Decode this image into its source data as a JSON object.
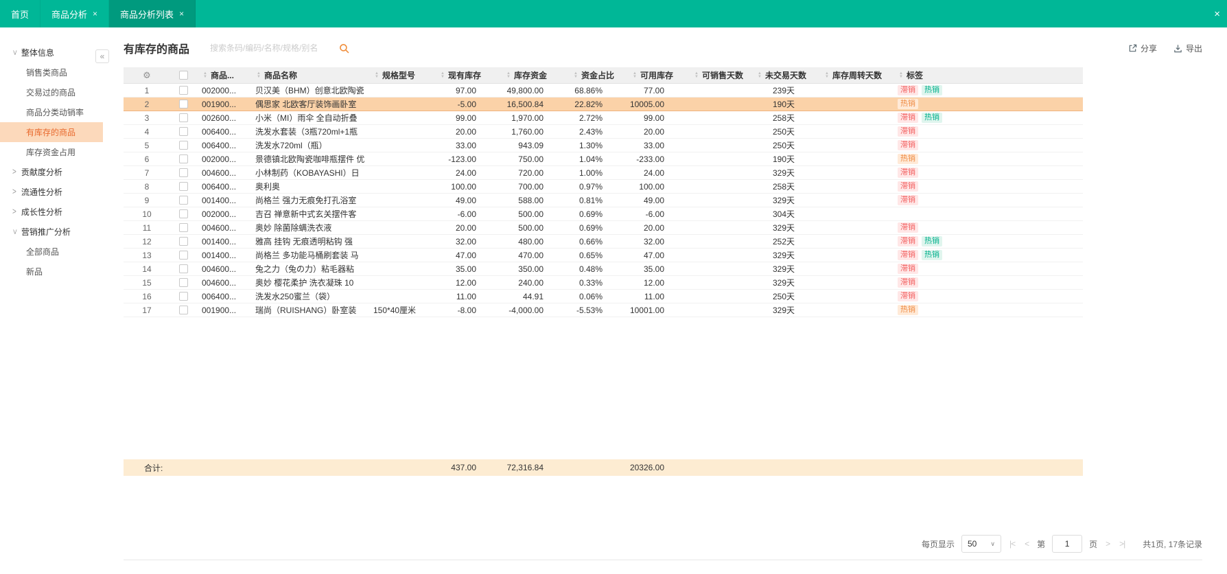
{
  "colors": {
    "accent": "#00b797",
    "tab_active": "#009a7e",
    "selection_bg": "#fbd2a8",
    "active_nav_bg": "#fcd9bb",
    "active_nav_text": "#e8692d",
    "summary_bg": "#fdecd2",
    "tag_red_bg": "#ffe7e7",
    "tag_red_text": "#f25e5e",
    "tag_teal_bg": "#e0f5ee",
    "tag_teal_text": "#00b08b",
    "tag_orange_bg": "#ffead8",
    "tag_orange_text": "#ef8c44",
    "search_icon": "#f08e3c"
  },
  "topbar": {
    "tabs": [
      {
        "label": "首页",
        "closable": false,
        "active": false
      },
      {
        "label": "商品分析",
        "closable": true,
        "active": false
      },
      {
        "label": "商品分析列表",
        "closable": true,
        "active": true
      }
    ],
    "tab_close_label": "×",
    "close_label": "×"
  },
  "sidebar": {
    "collapse_label": "«",
    "groups": [
      {
        "label": "整体信息",
        "expanded": true,
        "items": [
          {
            "label": "销售类商品",
            "active": false
          },
          {
            "label": "交易过的商品",
            "active": false
          },
          {
            "label": "商品分类动销率",
            "active": false
          },
          {
            "label": "有库存的商品",
            "active": true
          },
          {
            "label": "库存资金占用",
            "active": false
          }
        ]
      },
      {
        "label": "贡献度分析",
        "expanded": false,
        "items": []
      },
      {
        "label": "流通性分析",
        "expanded": false,
        "items": []
      },
      {
        "label": "成长性分析",
        "expanded": false,
        "items": []
      },
      {
        "label": "营销推广分析",
        "expanded": true,
        "items": [
          {
            "label": "全部商品",
            "active": false
          },
          {
            "label": "新品",
            "active": false
          }
        ]
      }
    ]
  },
  "header": {
    "title": "有库存的商品",
    "search_placeholder": "搜索条码/编码/名称/规格/别名",
    "share": "分享",
    "export": "导出"
  },
  "table": {
    "columns": {
      "code": "商品...",
      "name": "商品名称",
      "spec": "规格型号",
      "stock": "现有库存",
      "fund": "库存资金",
      "ratio": "资金占比",
      "avail": "可用库存",
      "sell": "可销售天数",
      "notrade": "未交易天数",
      "turn": "库存周转天数",
      "tags": "标签"
    },
    "rows": [
      {
        "n": "1",
        "code": "002000...",
        "name": "贝汉美（BHM）创意北欧陶瓷",
        "spec": "",
        "stock": "97.00",
        "fund": "49,800.00",
        "ratio": "68.86%",
        "avail": "77.00",
        "sell": "",
        "notrade": "239天",
        "turn": "",
        "tags": [
          {
            "text": "滞销",
            "type": "red"
          },
          {
            "text": "热销",
            "type": "teal"
          }
        ],
        "selected": false
      },
      {
        "n": "2",
        "code": "001900...",
        "name": "偶思家 北欧客厅装饰画卧室",
        "spec": "",
        "stock": "-5.00",
        "fund": "16,500.84",
        "ratio": "22.82%",
        "avail": "10005.00",
        "sell": "",
        "notrade": "190天",
        "turn": "",
        "tags": [
          {
            "text": "热销",
            "type": "orange"
          }
        ],
        "selected": true
      },
      {
        "n": "3",
        "code": "002600...",
        "name": "小米（MI）雨伞 全自动折叠",
        "spec": "",
        "stock": "99.00",
        "fund": "1,970.00",
        "ratio": "2.72%",
        "avail": "99.00",
        "sell": "",
        "notrade": "258天",
        "turn": "",
        "tags": [
          {
            "text": "滞销",
            "type": "red"
          },
          {
            "text": "热销",
            "type": "teal"
          }
        ],
        "selected": false
      },
      {
        "n": "4",
        "code": "006400...",
        "name": "洗发水套装（3瓶720ml+1瓶",
        "spec": "",
        "stock": "20.00",
        "fund": "1,760.00",
        "ratio": "2.43%",
        "avail": "20.00",
        "sell": "",
        "notrade": "250天",
        "turn": "",
        "tags": [
          {
            "text": "滞销",
            "type": "red"
          }
        ],
        "selected": false
      },
      {
        "n": "5",
        "code": "006400...",
        "name": "洗发水720ml（瓶）",
        "spec": "",
        "stock": "33.00",
        "fund": "943.09",
        "ratio": "1.30%",
        "avail": "33.00",
        "sell": "",
        "notrade": "250天",
        "turn": "",
        "tags": [
          {
            "text": "滞销",
            "type": "red"
          }
        ],
        "selected": false
      },
      {
        "n": "6",
        "code": "002000...",
        "name": "景德镇北欧陶瓷咖啡瓶摆件 优",
        "spec": "",
        "stock": "-123.00",
        "fund": "750.00",
        "ratio": "1.04%",
        "avail": "-233.00",
        "sell": "",
        "notrade": "190天",
        "turn": "",
        "tags": [
          {
            "text": "热销",
            "type": "orange"
          }
        ],
        "selected": false
      },
      {
        "n": "7",
        "code": "004600...",
        "name": "小林制药（KOBAYASHI）日",
        "spec": "",
        "stock": "24.00",
        "fund": "720.00",
        "ratio": "1.00%",
        "avail": "24.00",
        "sell": "",
        "notrade": "329天",
        "turn": "",
        "tags": [
          {
            "text": "滞销",
            "type": "red"
          }
        ],
        "selected": false
      },
      {
        "n": "8",
        "code": "006400...",
        "name": "奥利奥",
        "spec": "",
        "stock": "100.00",
        "fund": "700.00",
        "ratio": "0.97%",
        "avail": "100.00",
        "sell": "",
        "notrade": "258天",
        "turn": "",
        "tags": [
          {
            "text": "滞销",
            "type": "red"
          }
        ],
        "selected": false
      },
      {
        "n": "9",
        "code": "001400...",
        "name": "尚格兰 强力无痕免打孔浴室",
        "spec": "",
        "stock": "49.00",
        "fund": "588.00",
        "ratio": "0.81%",
        "avail": "49.00",
        "sell": "",
        "notrade": "329天",
        "turn": "",
        "tags": [
          {
            "text": "滞销",
            "type": "red"
          }
        ],
        "selected": false
      },
      {
        "n": "10",
        "code": "002000...",
        "name": "吉召 禅意新中式玄关摆件客",
        "spec": "",
        "stock": "-6.00",
        "fund": "500.00",
        "ratio": "0.69%",
        "avail": "-6.00",
        "sell": "",
        "notrade": "304天",
        "turn": "",
        "tags": [],
        "selected": false
      },
      {
        "n": "11",
        "code": "004600...",
        "name": "奥妙 除菌除螨洗衣液",
        "spec": "",
        "stock": "20.00",
        "fund": "500.00",
        "ratio": "0.69%",
        "avail": "20.00",
        "sell": "",
        "notrade": "329天",
        "turn": "",
        "tags": [
          {
            "text": "滞销",
            "type": "red"
          }
        ],
        "selected": false
      },
      {
        "n": "12",
        "code": "001400...",
        "name": "雅高 挂钩 无痕透明粘钩 强",
        "spec": "",
        "stock": "32.00",
        "fund": "480.00",
        "ratio": "0.66%",
        "avail": "32.00",
        "sell": "",
        "notrade": "252天",
        "turn": "",
        "tags": [
          {
            "text": "滞销",
            "type": "red"
          },
          {
            "text": "热销",
            "type": "teal"
          }
        ],
        "selected": false
      },
      {
        "n": "13",
        "code": "001400...",
        "name": "尚格兰 多功能马桶刷套装 马",
        "spec": "",
        "stock": "47.00",
        "fund": "470.00",
        "ratio": "0.65%",
        "avail": "47.00",
        "sell": "",
        "notrade": "329天",
        "turn": "",
        "tags": [
          {
            "text": "滞销",
            "type": "red"
          },
          {
            "text": "热销",
            "type": "teal"
          }
        ],
        "selected": false
      },
      {
        "n": "14",
        "code": "004600...",
        "name": "兔之力（兔の力）粘毛器粘",
        "spec": "",
        "stock": "35.00",
        "fund": "350.00",
        "ratio": "0.48%",
        "avail": "35.00",
        "sell": "",
        "notrade": "329天",
        "turn": "",
        "tags": [
          {
            "text": "滞销",
            "type": "red"
          }
        ],
        "selected": false
      },
      {
        "n": "15",
        "code": "004600...",
        "name": "奥妙 樱花柔护 洗衣凝珠 10",
        "spec": "",
        "stock": "12.00",
        "fund": "240.00",
        "ratio": "0.33%",
        "avail": "12.00",
        "sell": "",
        "notrade": "329天",
        "turn": "",
        "tags": [
          {
            "text": "滞销",
            "type": "red"
          }
        ],
        "selected": false
      },
      {
        "n": "16",
        "code": "006400...",
        "name": "洗发水250蜜兰（袋）",
        "spec": "",
        "stock": "11.00",
        "fund": "44.91",
        "ratio": "0.06%",
        "avail": "11.00",
        "sell": "",
        "notrade": "250天",
        "turn": "",
        "tags": [
          {
            "text": "滞销",
            "type": "red"
          }
        ],
        "selected": false
      },
      {
        "n": "17",
        "code": "001900...",
        "name": "瑞尚（RUISHANG）卧室装",
        "spec": "150*40厘米",
        "stock": "-8.00",
        "fund": "-4,000.00",
        "ratio": "-5.53%",
        "avail": "10001.00",
        "sell": "",
        "notrade": "329天",
        "turn": "",
        "tags": [
          {
            "text": "热销",
            "type": "orange"
          }
        ],
        "selected": false
      }
    ],
    "summary": {
      "label": "合计:",
      "stock": "437.00",
      "fund": "72,316.84",
      "avail": "20326.00"
    }
  },
  "pagination": {
    "page_size_label": "每页显示",
    "page_size": "50",
    "first": "|<",
    "prev": "<",
    "next": ">",
    "last": ">|",
    "page_prefix": "第",
    "page_value": "1",
    "page_suffix": "页",
    "total": "共1页, 17条记录"
  }
}
